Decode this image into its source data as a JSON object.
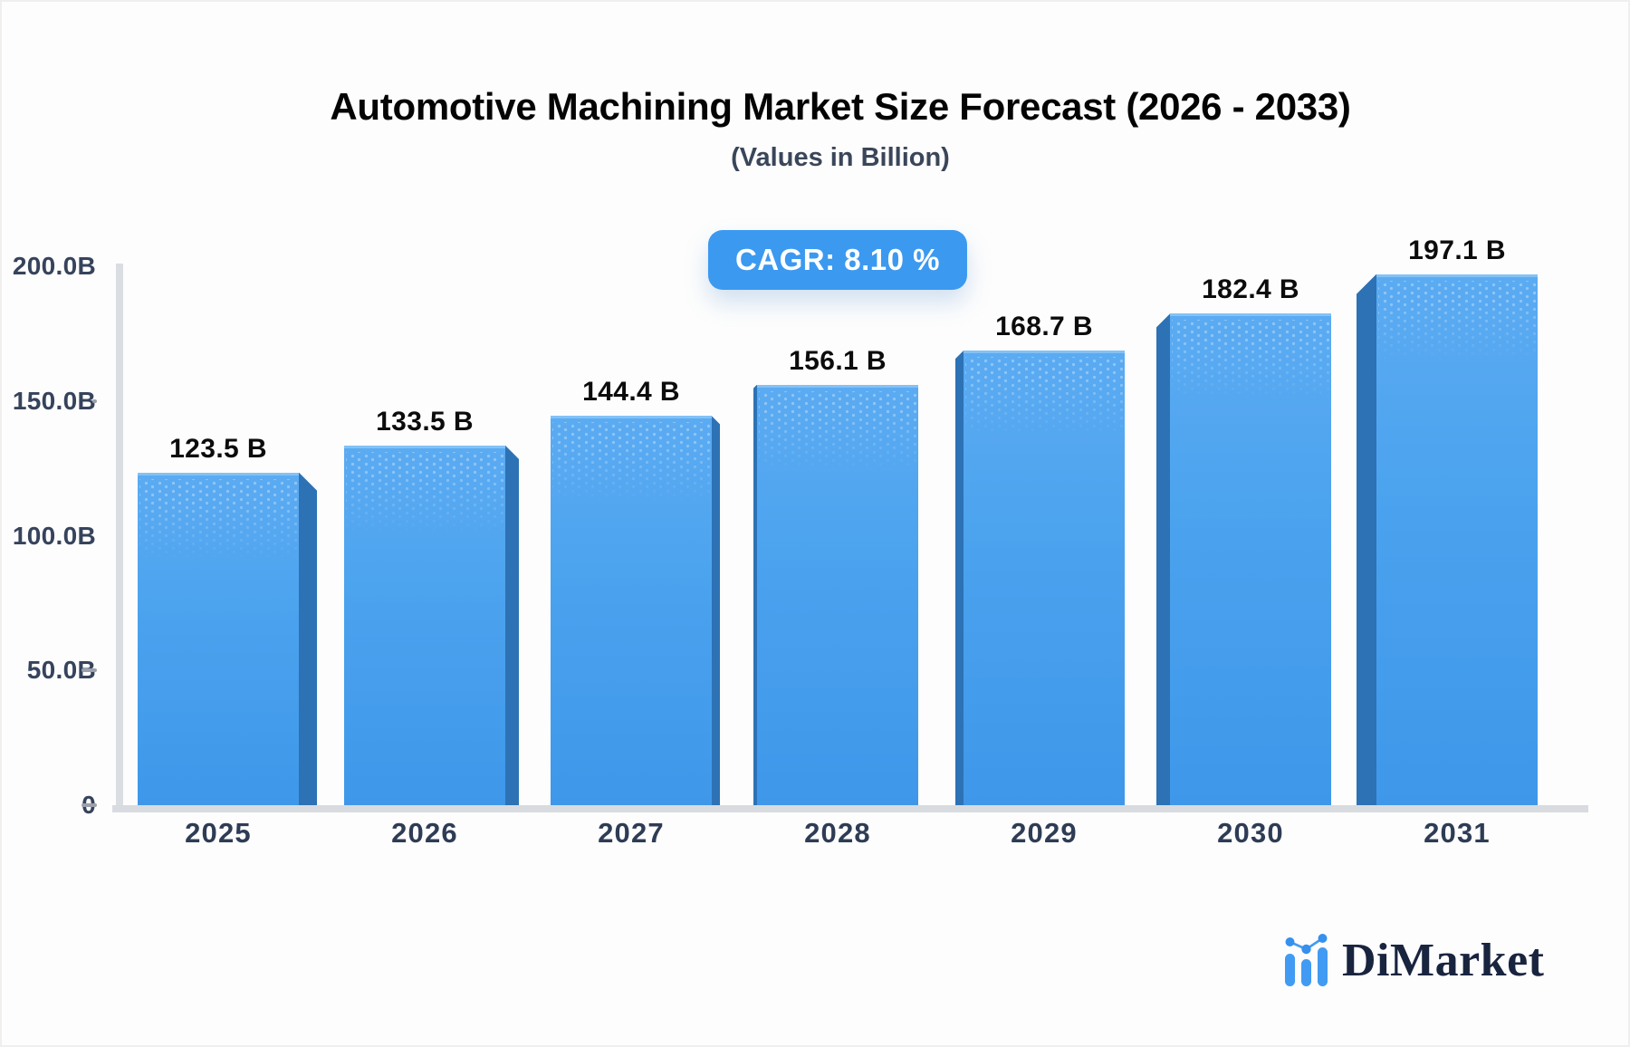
{
  "header": {
    "title": "Automotive Machining Market Size Forecast (2026 - 2033)",
    "subtitle": "(Values in Billion)",
    "cagr_badge": "CAGR: 8.10 %"
  },
  "chart_data": {
    "type": "bar",
    "title": "Automotive Machining Market Size Forecast (2026 - 2033)",
    "subtitle": "(Values in Billion)",
    "cagr": "8.10 %",
    "categories": [
      "2025",
      "2026",
      "2027",
      "2028",
      "2029",
      "2030",
      "2031"
    ],
    "values": [
      123.5,
      133.5,
      144.4,
      156.1,
      168.7,
      182.4,
      197.1
    ],
    "bar_labels": [
      "123.5 B",
      "133.5 B",
      "144.4 B",
      "156.1 B",
      "168.7 B",
      "182.4 B",
      "197.1 B"
    ],
    "unit": "Billion",
    "xlabel": "",
    "ylabel": "",
    "ylim": [
      0,
      200
    ],
    "y_ticks": [
      {
        "value": 200,
        "label": "200.0B"
      },
      {
        "value": 150,
        "label": "150.0B"
      },
      {
        "value": 100,
        "label": "100.0B"
      },
      {
        "value": 50,
        "label": "50.0B"
      },
      {
        "value": 0,
        "label": "0"
      }
    ],
    "grid": false,
    "legend": false,
    "colors": {
      "bar_face": "#459ceb",
      "bar_side_3d": "#2d72b4",
      "badge_background": "#3b99f0",
      "badge_text": "#ffffff",
      "axis_line": "#d8dbe0",
      "value_label": "#0c0c0c",
      "tick_label": "#36435c"
    }
  },
  "branding": {
    "logo_text": "DiMarket",
    "logo_icon": "bar-chart-trend-icon"
  }
}
